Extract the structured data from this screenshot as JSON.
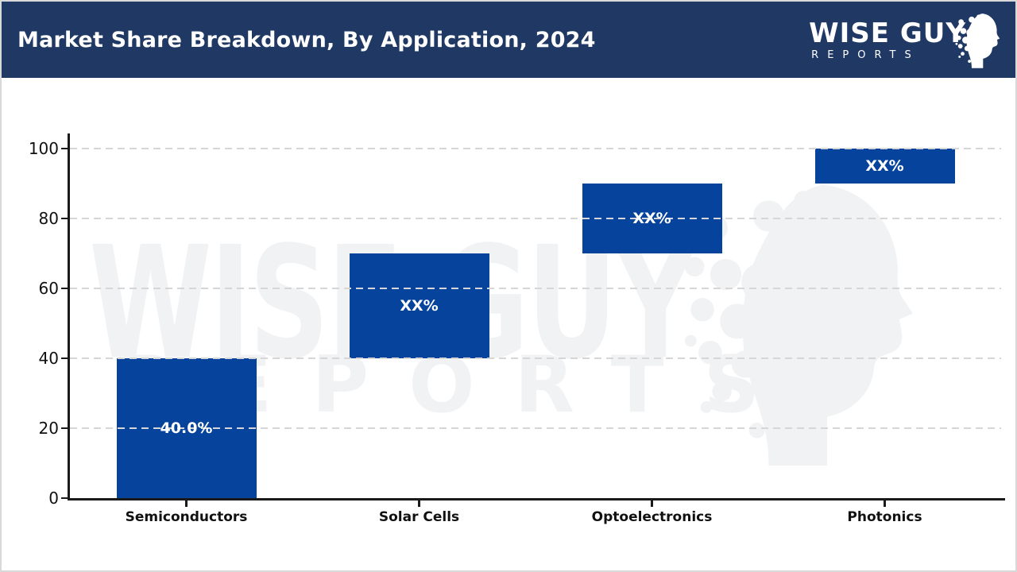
{
  "header": {
    "title": "Market Share Breakdown, By Application, 2024",
    "bg_color": "#1f3864",
    "logo": {
      "line1": "WISE GUY",
      "line2": "REPORTS"
    }
  },
  "watermark": {
    "line1": "WISE GUY",
    "line2": "REPORTS"
  },
  "chart_data": {
    "type": "bar",
    "subtype": "floating-waterfall",
    "title": "Market Share Breakdown, By Application, 2024",
    "categories": [
      "Semiconductors",
      "Solar Cells",
      "Optoelectronics",
      "Photonics"
    ],
    "series": [
      {
        "name": "Market share (%)",
        "start": [
          0,
          40,
          70,
          90
        ],
        "end": [
          40,
          70,
          90,
          100
        ]
      }
    ],
    "bar_labels": [
      "40.0%",
      "XX%",
      "XX%",
      "XX%"
    ],
    "xlabel": "",
    "ylabel": "",
    "ylim": [
      0,
      100
    ],
    "yticks": [
      0,
      20,
      40,
      60,
      80,
      100
    ],
    "grid": "horizontal-dashed",
    "legend": "none",
    "colors": {
      "bar": "#05439c",
      "header_bg": "#1f3864",
      "grid": "#d6d6d6",
      "axis": "#1a1a1a",
      "bar_label": "#ffffff",
      "tick_label": "#111111",
      "watermark": "#f1f2f4"
    }
  }
}
